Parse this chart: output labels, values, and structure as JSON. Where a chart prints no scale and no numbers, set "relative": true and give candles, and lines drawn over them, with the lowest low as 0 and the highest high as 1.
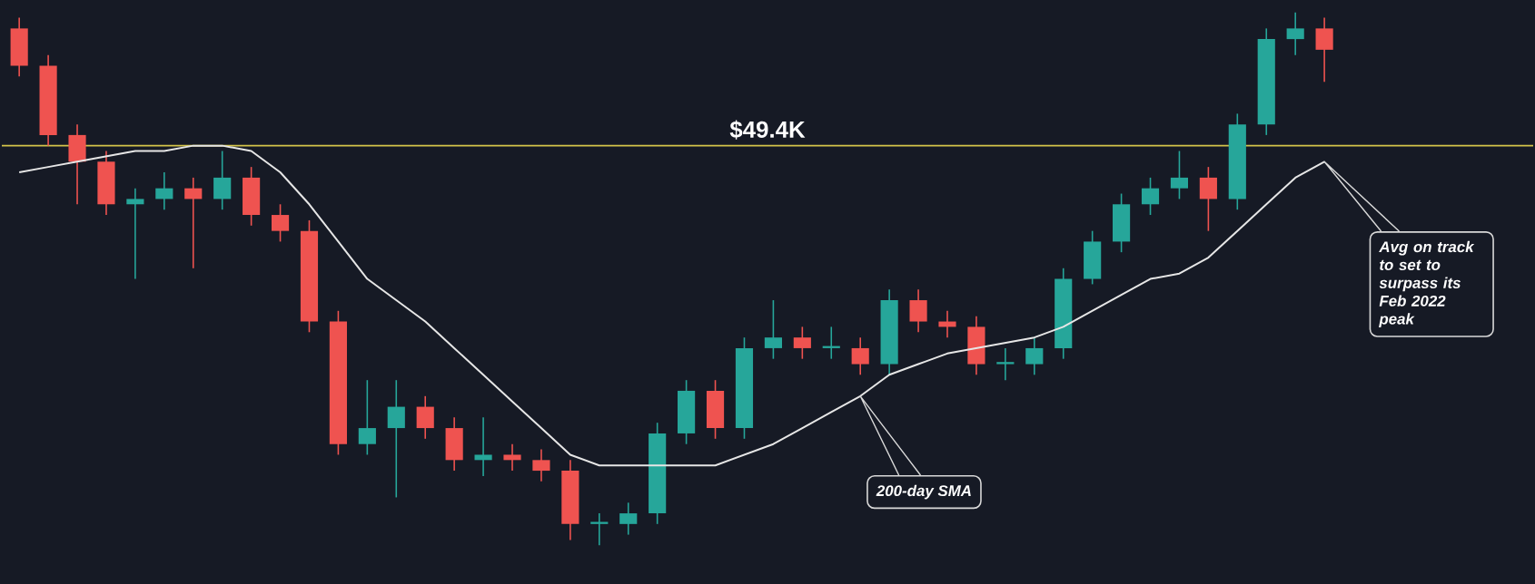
{
  "chart_data": {
    "type": "candlestick",
    "relative": true,
    "categories": [
      null,
      null,
      null,
      null,
      null,
      null,
      null,
      null,
      null,
      null,
      null,
      null,
      null,
      null,
      null,
      null,
      null,
      null,
      null,
      null,
      null,
      null,
      null,
      null,
      null,
      null,
      null,
      null,
      null,
      null,
      null,
      null,
      null,
      null,
      null,
      null,
      null,
      null,
      null,
      null,
      null,
      null,
      null,
      null,
      null,
      null
    ],
    "ohlc": [
      [
        0.97,
        0.99,
        0.88,
        0.9
      ],
      [
        0.9,
        0.92,
        0.75,
        0.77
      ],
      [
        0.77,
        0.79,
        0.64,
        0.72
      ],
      [
        0.72,
        0.74,
        0.62,
        0.64
      ],
      [
        0.64,
        0.67,
        0.5,
        0.65
      ],
      [
        0.65,
        0.7,
        0.63,
        0.67
      ],
      [
        0.67,
        0.69,
        0.52,
        0.65
      ],
      [
        0.65,
        0.74,
        0.63,
        0.69
      ],
      [
        0.69,
        0.71,
        0.6,
        0.62
      ],
      [
        0.62,
        0.64,
        0.57,
        0.59
      ],
      [
        0.59,
        0.61,
        0.4,
        0.42
      ],
      [
        0.42,
        0.44,
        0.17,
        0.19
      ],
      [
        0.19,
        0.31,
        0.17,
        0.22
      ],
      [
        0.22,
        0.31,
        0.09,
        0.26
      ],
      [
        0.26,
        0.28,
        0.2,
        0.22
      ],
      [
        0.22,
        0.24,
        0.14,
        0.16
      ],
      [
        0.16,
        0.24,
        0.13,
        0.17
      ],
      [
        0.17,
        0.19,
        0.14,
        0.16
      ],
      [
        0.16,
        0.18,
        0.12,
        0.14
      ],
      [
        0.14,
        0.16,
        0.01,
        0.04
      ],
      [
        0.04,
        0.06,
        0.0,
        0.04
      ],
      [
        0.04,
        0.08,
        0.02,
        0.06
      ],
      [
        0.06,
        0.23,
        0.04,
        0.21
      ],
      [
        0.21,
        0.31,
        0.19,
        0.29
      ],
      [
        0.29,
        0.31,
        0.2,
        0.22
      ],
      [
        0.22,
        0.39,
        0.2,
        0.37
      ],
      [
        0.37,
        0.46,
        0.35,
        0.39
      ],
      [
        0.39,
        0.41,
        0.35,
        0.37
      ],
      [
        0.37,
        0.41,
        0.35,
        0.37
      ],
      [
        0.37,
        0.39,
        0.32,
        0.34
      ],
      [
        0.34,
        0.48,
        0.32,
        0.46
      ],
      [
        0.46,
        0.48,
        0.4,
        0.42
      ],
      [
        0.42,
        0.44,
        0.39,
        0.41
      ],
      [
        0.41,
        0.43,
        0.32,
        0.34
      ],
      [
        0.34,
        0.37,
        0.31,
        0.34
      ],
      [
        0.34,
        0.39,
        0.32,
        0.37
      ],
      [
        0.37,
        0.52,
        0.35,
        0.5
      ],
      [
        0.5,
        0.59,
        0.49,
        0.57
      ],
      [
        0.57,
        0.66,
        0.55,
        0.64
      ],
      [
        0.64,
        0.69,
        0.62,
        0.67
      ],
      [
        0.67,
        0.74,
        0.65,
        0.69
      ],
      [
        0.69,
        0.71,
        0.59,
        0.65
      ],
      [
        0.65,
        0.81,
        0.63,
        0.79
      ],
      [
        0.79,
        0.97,
        0.77,
        0.95
      ],
      [
        0.95,
        1.0,
        0.92,
        0.97
      ],
      [
        0.97,
        0.99,
        0.87,
        0.93
      ]
    ],
    "colors": [
      "#ef5350",
      "#ef5350",
      "#ef5350",
      "#ef5350",
      "#26a69a",
      "#26a69a",
      "#ef5350",
      "#26a69a",
      "#ef5350",
      "#ef5350",
      "#ef5350",
      "#ef5350",
      "#26a69a",
      "#26a69a",
      "#ef5350",
      "#ef5350",
      "#26a69a",
      "#ef5350",
      "#ef5350",
      "#ef5350",
      "#26a69a",
      "#26a69a",
      "#26a69a",
      "#26a69a",
      "#ef5350",
      "#26a69a",
      "#26a69a",
      "#ef5350",
      "#26a69a",
      "#ef5350",
      "#26a69a",
      "#ef5350",
      "#ef5350",
      "#ef5350",
      "#26a69a",
      "#26a69a",
      "#26a69a",
      "#26a69a",
      "#26a69a",
      "#26a69a",
      "#26a69a",
      "#ef5350",
      "#26a69a",
      "#26a69a",
      "#26a69a",
      "#ef5350"
    ],
    "series": [
      {
        "type": "line",
        "color": "#e6e6e6",
        "values": [
          0.7,
          0.71,
          0.72,
          0.73,
          0.74,
          0.74,
          0.75,
          0.75,
          0.74,
          0.7,
          0.64,
          0.57,
          0.5,
          0.46,
          0.42,
          0.37,
          0.32,
          0.27,
          0.22,
          0.17,
          0.15,
          0.15,
          0.15,
          0.15,
          0.15,
          0.17,
          0.19,
          0.22,
          0.25,
          0.28,
          0.32,
          0.34,
          0.36,
          0.37,
          0.38,
          0.39,
          0.41,
          0.44,
          0.47,
          0.5,
          0.51,
          0.54,
          0.59,
          0.64,
          0.69,
          0.72
        ]
      }
    ],
    "ref_lines": [
      {
        "axis": "y",
        "value": 0.75,
        "label": "$49.4K",
        "color": "#d4c44a"
      }
    ],
    "annotations": [
      "200-day SMA",
      "Avg on track to set to surpass its Feb 2022 peak"
    ]
  }
}
